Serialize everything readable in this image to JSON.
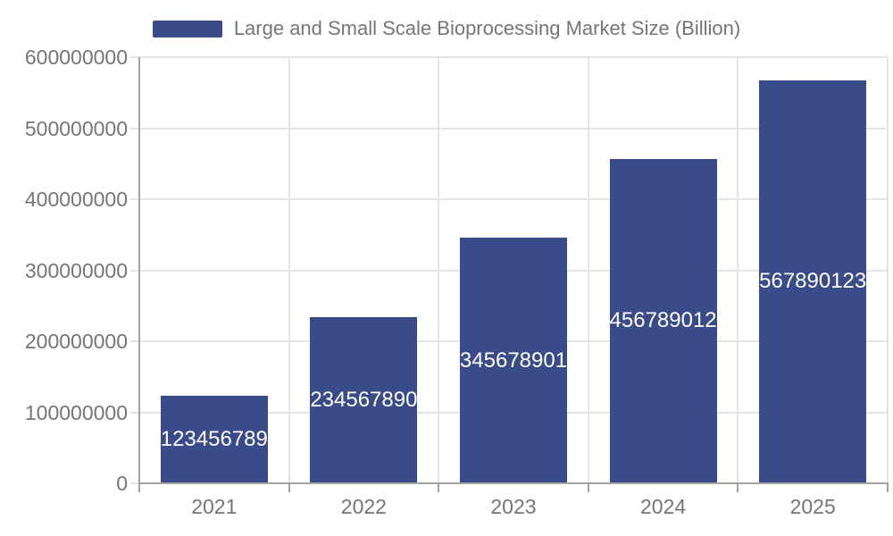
{
  "chart_data": {
    "type": "bar",
    "title": "Large and Small Scale Bioprocessing Market Size (Billion)",
    "categories": [
      "2021",
      "2022",
      "2023",
      "2024",
      "2025"
    ],
    "values": [
      123456789,
      234567890,
      345678901,
      456789012,
      567890123
    ],
    "series": [
      {
        "name": "Large and Small Scale Bioprocessing Market Size (Billion)",
        "values": [
          123456789,
          234567890,
          345678901,
          456789012,
          567890123
        ]
      }
    ],
    "data_labels": [
      "123456789",
      "234567890",
      "345678901",
      "456789012",
      "567890123"
    ],
    "xlabel": "",
    "ylabel": "",
    "ylim": [
      0,
      600000000
    ],
    "ytick_step": 100000000,
    "y_ticks": [
      0,
      100000000,
      200000000,
      300000000,
      400000000,
      500000000,
      600000000
    ],
    "grid": true,
    "legend_position": "top"
  },
  "colors": {
    "bar": "#3A4B8A",
    "grid": "#E4E4E4",
    "axis": "#A3A3A3",
    "tick_label": "#757575",
    "data_label": "#FFFFFF",
    "background": "#FFFFFF"
  }
}
